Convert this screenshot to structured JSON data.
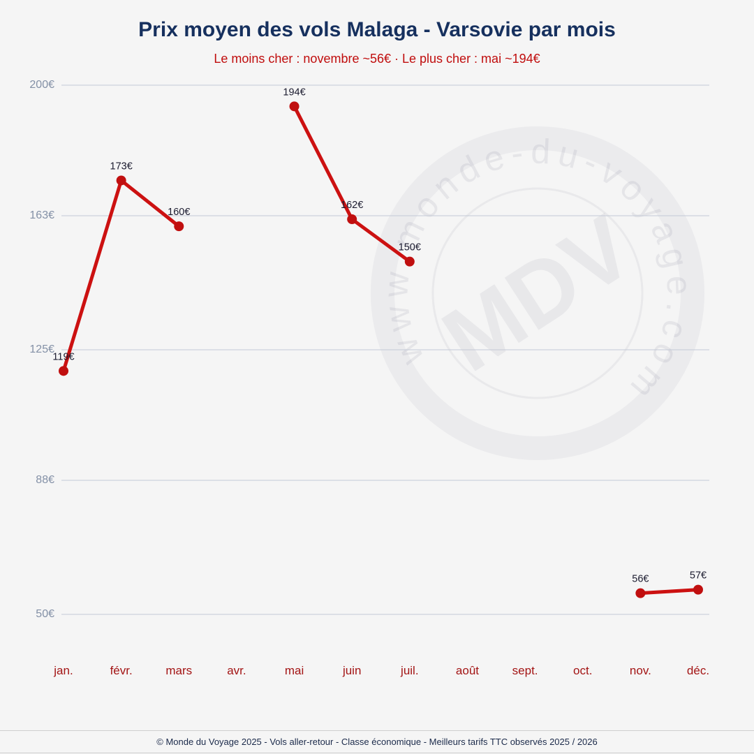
{
  "title": "Prix moyen des vols Malaga - Varsovie par mois",
  "subtitle": "Le moins cher : novembre ~56€ · Le plus cher : mai ~194€",
  "footer": "© Monde du Voyage 2025 - Vols aller-retour - Classe économique - Meilleurs tarifs TTC observés 2025 / 2026",
  "watermark": {
    "ring_text": "www.monde-du-voyage.com",
    "initials": "MDV"
  },
  "colors": {
    "title": "#16305e",
    "subtitle": "#c00d0d",
    "grid": "#c3c9d6",
    "y_tick_label": "#8390a6",
    "x_tick_label": "#a31414",
    "line": "#cc1111",
    "point": "#c00f0f",
    "point_label": "#1b1b2f",
    "watermark": "#9595a6",
    "background": "#f5f5f5"
  },
  "chart_data": {
    "type": "line",
    "title": "Prix moyen des vols Malaga - Varsovie par mois",
    "categories": [
      "jan.",
      "févr.",
      "mars",
      "avr.",
      "mai",
      "juin",
      "juil.",
      "août",
      "sept.",
      "oct.",
      "nov.",
      "déc."
    ],
    "values": [
      119,
      173,
      160,
      null,
      194,
      162,
      150,
      null,
      null,
      null,
      56,
      57
    ],
    "unit": "€",
    "yticks": [
      200,
      163,
      125,
      88,
      50
    ],
    "ylim": [
      50,
      200
    ],
    "grid": true,
    "legend": "none",
    "xlabel": "",
    "ylabel": "",
    "annotations": [
      "119€",
      "173€",
      "160€",
      "194€",
      "162€",
      "150€",
      "56€",
      "57€"
    ],
    "min_point": {
      "month": "novembre",
      "value": 56
    },
    "max_point": {
      "month": "mai",
      "value": 194
    }
  }
}
